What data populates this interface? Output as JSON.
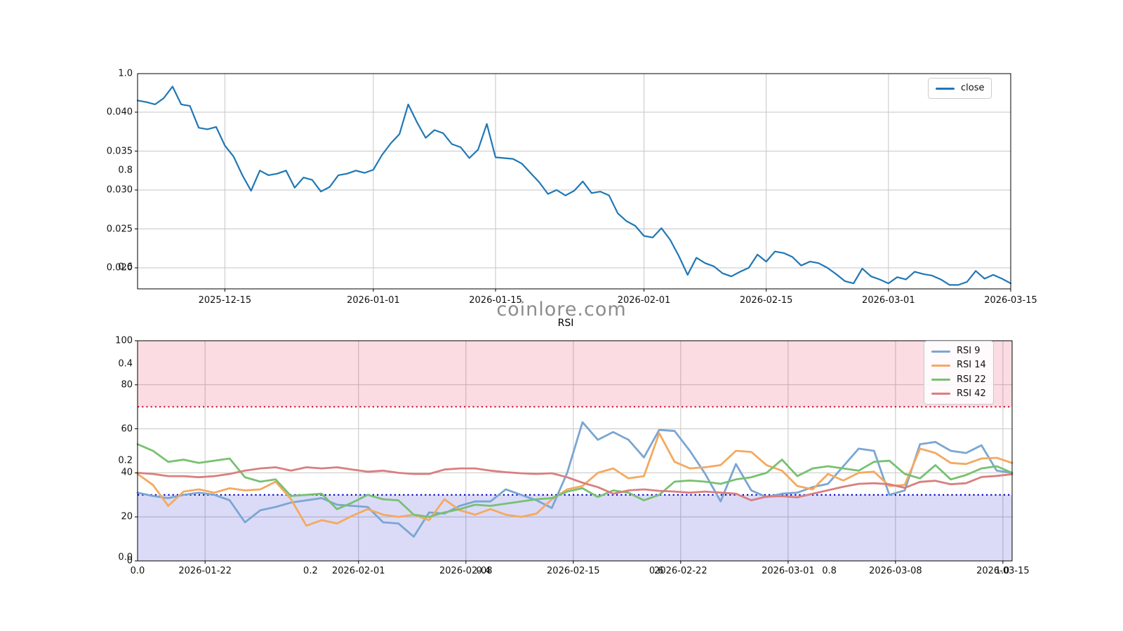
{
  "watermark": "coinlore.com",
  "figure_axes": {
    "x_tick_labels": [
      "0.0",
      "0.2",
      "0.4",
      "0.6",
      "0.8",
      "1.0"
    ],
    "y_tick_labels": [
      "1.0",
      "0.8",
      "0.6",
      "0.4",
      "0.2",
      "0.0"
    ]
  },
  "chart_data": [
    {
      "type": "line",
      "name": "price-chart",
      "title": "",
      "xlabel": "",
      "ylabel": "",
      "grid": true,
      "legend_position": "upper right",
      "ylim": [
        0.0173,
        0.045
      ],
      "y_ticks": [
        {
          "label": "0.040",
          "value": 0.04
        },
        {
          "label": "0.035",
          "value": 0.035
        },
        {
          "label": "0.030",
          "value": 0.03
        },
        {
          "label": "0.025",
          "value": 0.025
        },
        {
          "label": "0.020",
          "value": 0.02
        }
      ],
      "x_ticks": [
        {
          "label": "2025-12-15",
          "day": 10
        },
        {
          "label": "2026-01-01",
          "day": 27
        },
        {
          "label": "2026-01-15",
          "day": 41
        },
        {
          "label": "2026-02-01",
          "day": 58
        },
        {
          "label": "2026-02-15",
          "day": 72
        },
        {
          "label": "2026-03-01",
          "day": 86
        },
        {
          "label": "2026-03-15",
          "day": 100
        }
      ],
      "series": [
        {
          "name": "close",
          "color": "#1f77b4",
          "start_date": "2025-12-05",
          "end_date": "2026-03-15",
          "values": [
            0.0415,
            0.0413,
            0.041,
            0.0418,
            0.0433,
            0.041,
            0.0408,
            0.038,
            0.0378,
            0.0381,
            0.0357,
            0.0343,
            0.0319,
            0.0299,
            0.0325,
            0.0319,
            0.0321,
            0.0325,
            0.0303,
            0.0316,
            0.0313,
            0.0298,
            0.0304,
            0.0319,
            0.0321,
            0.0325,
            0.0322,
            0.0326,
            0.0345,
            0.036,
            0.0372,
            0.041,
            0.0387,
            0.0367,
            0.0377,
            0.0373,
            0.0359,
            0.0355,
            0.0341,
            0.0352,
            0.0385,
            0.0342,
            0.0341,
            0.034,
            0.0334,
            0.0322,
            0.031,
            0.0295,
            0.03,
            0.0293,
            0.0299,
            0.0311,
            0.0296,
            0.0298,
            0.0293,
            0.027,
            0.026,
            0.0254,
            0.0241,
            0.0239,
            0.0251,
            0.0236,
            0.0215,
            0.0191,
            0.0213,
            0.0206,
            0.0202,
            0.0193,
            0.0189,
            0.0195,
            0.02,
            0.0217,
            0.0208,
            0.0221,
            0.0219,
            0.0214,
            0.0203,
            0.0208,
            0.0206,
            0.02,
            0.0192,
            0.0183,
            0.018,
            0.0199,
            0.0189,
            0.0185,
            0.018,
            0.0188,
            0.0185,
            0.0195,
            0.0192,
            0.019,
            0.0185,
            0.0178,
            0.0178,
            0.0182,
            0.0196,
            0.0186,
            0.0191,
            0.0186,
            0.018
          ]
        }
      ]
    },
    {
      "type": "line",
      "name": "rsi-chart",
      "title": "RSI",
      "xlabel": "",
      "ylabel": "",
      "grid": true,
      "legend_position": "upper right",
      "ylim": [
        0,
        100
      ],
      "y_ticks": [
        {
          "label": "100",
          "value": 100
        },
        {
          "label": "80",
          "value": 80
        },
        {
          "label": "60",
          "value": 60
        },
        {
          "label": "40",
          "value": 40
        },
        {
          "label": "20",
          "value": 20
        },
        {
          "label": "0",
          "value": 0
        }
      ],
      "x_ticks": [
        {
          "label": "2026-01-22",
          "day": 4.4
        },
        {
          "label": "2026-02-01",
          "day": 14.4
        },
        {
          "label": "2026-02-08",
          "day": 21.4
        },
        {
          "label": "2026-02-15",
          "day": 28.4
        },
        {
          "label": "2026-02-22",
          "day": 35.4
        },
        {
          "label": "2026-03-01",
          "day": 42.4
        },
        {
          "label": "2026-03-08",
          "day": 49.4
        },
        {
          "label": "2026-03-15",
          "day": 56.4
        }
      ],
      "overbought": {
        "level": 70,
        "band": [
          70,
          100
        ],
        "band_color": "rgba(220,20,60,0.15)",
        "line_color": "#dc143c"
      },
      "oversold": {
        "level": 30,
        "band": [
          0,
          30
        ],
        "band_color": "rgba(0,0,205,0.14)",
        "line_color": "#0000cd"
      },
      "series": [
        {
          "name": "RSI 9",
          "color": "#7aa6d2",
          "start_date": "2026-01-17",
          "end_date": "2026-03-15",
          "values": [
            31,
            29.5,
            28.5,
            30,
            31,
            30,
            27.5,
            17.5,
            23,
            24.5,
            26.5,
            27.5,
            28.5,
            25.5,
            25,
            24.5,
            17.5,
            17,
            11,
            22,
            21.5,
            25,
            27,
            27,
            32.5,
            30,
            27.5,
            24,
            40,
            63,
            55,
            58.5,
            55,
            47,
            59.5,
            59,
            50,
            39.5,
            27,
            44,
            32,
            29,
            30.5,
            31,
            33.5,
            35,
            43,
            51,
            50,
            30,
            32,
            53,
            54,
            50,
            49,
            52.5,
            41,
            40
          ]
        },
        {
          "name": "RSI 14",
          "color": "#f4a95f",
          "start_date": "2026-01-17",
          "end_date": "2026-03-15",
          "values": [
            39.5,
            34.5,
            25,
            31.5,
            32.5,
            31,
            33,
            32,
            32.5,
            36,
            28,
            16,
            18.5,
            17,
            20.5,
            23.5,
            21,
            20,
            21,
            18.5,
            28,
            23,
            21,
            23.5,
            21,
            20,
            21.5,
            28,
            32.5,
            34,
            40,
            42,
            37.5,
            38.5,
            58,
            45,
            42,
            42.5,
            43.5,
            50,
            49.5,
            43.5,
            41,
            34,
            32.5,
            39.5,
            36.5,
            40,
            40.5,
            34,
            34.5,
            51,
            49,
            44.5,
            44,
            46.5,
            46.8,
            44.5
          ]
        },
        {
          "name": "RSI 22",
          "color": "#77c170",
          "start_date": "2026-01-17",
          "end_date": "2026-03-15",
          "values": [
            53,
            50,
            45,
            46,
            44.5,
            45.5,
            46.5,
            38,
            36,
            37,
            29.5,
            30,
            30.5,
            23.5,
            26.5,
            30,
            28,
            27.5,
            21,
            20,
            22,
            23.5,
            25.5,
            25,
            26,
            27,
            28,
            28.5,
            31.5,
            33,
            29,
            32,
            31,
            27.5,
            30,
            36,
            36.5,
            36,
            35,
            37,
            38,
            40,
            46,
            38.5,
            42,
            43,
            42,
            41,
            45,
            45.5,
            39.5,
            37.5,
            43.5,
            37,
            39,
            42,
            43,
            40
          ]
        },
        {
          "name": "RSI 42",
          "color": "#d97f7f",
          "start_date": "2026-01-17",
          "end_date": "2026-03-15",
          "values": [
            40,
            39.5,
            38.5,
            38.5,
            38,
            38.5,
            39.5,
            41,
            42,
            42.5,
            41,
            42.5,
            42,
            42.5,
            41.5,
            40.5,
            41,
            40,
            39.5,
            39.5,
            41.5,
            42,
            42,
            41,
            40.3,
            39.8,
            39.5,
            39.8,
            38,
            35.5,
            33.5,
            30.5,
            32,
            32.5,
            31.8,
            31.5,
            31,
            31.5,
            31,
            30.5,
            27.5,
            29.2,
            29.4,
            28.9,
            30.5,
            32.1,
            33.7,
            35,
            35.3,
            34.8,
            33.2,
            35.9,
            36.4,
            34.8,
            35.3,
            38.1,
            38.6,
            39.4
          ]
        }
      ]
    }
  ]
}
